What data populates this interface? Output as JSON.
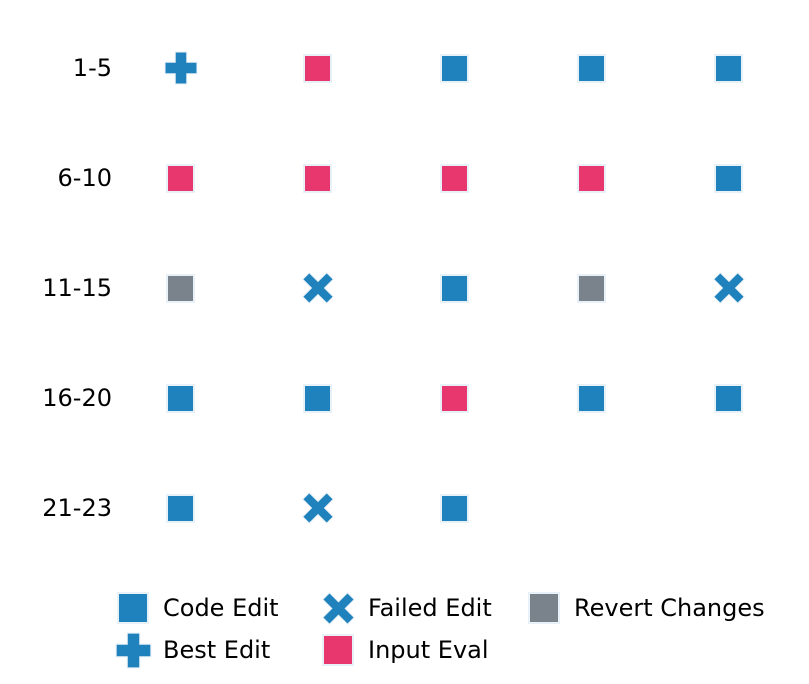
{
  "chart_data": {
    "type": "scatter",
    "title": "",
    "xlabel": "",
    "ylabel": "",
    "grid": false,
    "background": "#ffffff",
    "halo_color": "#e9f1f8",
    "text_color": "#000000",
    "rows": [
      "1-5",
      "6-10",
      "11-15",
      "16-20",
      "21-23"
    ],
    "columns": 5,
    "cells": [
      [
        "best_edit",
        "input_eval",
        "code_edit",
        "code_edit",
        "code_edit"
      ],
      [
        "input_eval",
        "input_eval",
        "input_eval",
        "input_eval",
        "code_edit"
      ],
      [
        "revert_changes",
        "failed_edit",
        "code_edit",
        "revert_changes",
        "failed_edit"
      ],
      [
        "code_edit",
        "code_edit",
        "input_eval",
        "code_edit",
        "code_edit"
      ],
      [
        "code_edit",
        "failed_edit",
        "code_edit",
        null,
        null
      ]
    ],
    "marker_types": {
      "code_edit": {
        "label": "Code Edit",
        "shape": "square",
        "color": "#1f82bc"
      },
      "failed_edit": {
        "label": "Failed Edit",
        "shape": "x",
        "color": "#1f82bc"
      },
      "revert_changes": {
        "label": "Revert Changes",
        "shape": "square",
        "color": "#7a828c"
      },
      "best_edit": {
        "label": "Best Edit",
        "shape": "plus",
        "color": "#1f82bc"
      },
      "input_eval": {
        "label": "Input Eval",
        "shape": "square",
        "color": "#e8376e"
      }
    },
    "legend": {
      "position": "bottom",
      "columns": 3,
      "items": [
        "code_edit",
        "failed_edit",
        "revert_changes",
        "best_edit",
        "input_eval"
      ]
    }
  }
}
